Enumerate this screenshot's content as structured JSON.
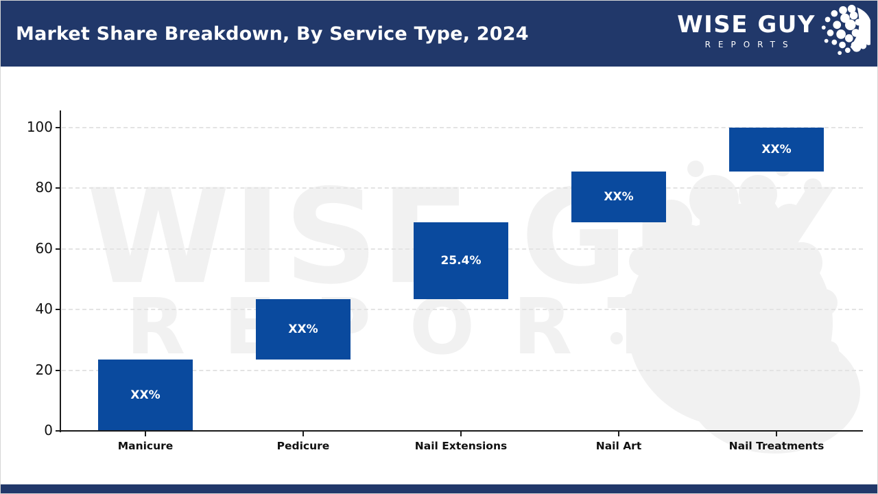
{
  "header": {
    "title": "Market Share Breakdown, By Service Type, 2024",
    "bg_color": "#21386a",
    "logo": {
      "line1": "WISE GUY",
      "line2": "REPORTS"
    }
  },
  "watermark": {
    "line1": "WISE GUY",
    "line2": "REPORTS"
  },
  "chart_data": {
    "type": "bar",
    "subtype": "waterfall",
    "title": "Market Share Breakdown, By Service Type, 2024",
    "categories": [
      "Manicure",
      "Pedicure",
      "Nail Extensions",
      "Nail Art",
      "Nail Treatments"
    ],
    "series": [
      {
        "name": "Market Share (%)",
        "starts": [
          0,
          23.4,
          43.4,
          68.8,
          85.5
        ],
        "values": [
          23.4,
          20.0,
          25.4,
          16.7,
          14.5
        ],
        "labels": [
          "XX%",
          "XX%",
          "25.4%",
          "XX%",
          "XX%"
        ]
      }
    ],
    "xlabel": "",
    "ylabel": "",
    "ylim": [
      0,
      100
    ],
    "yticks": [
      0,
      20,
      40,
      60,
      80,
      100
    ],
    "grid": "horizontal-dashed",
    "legend": "none",
    "bar_color": "#0a4a9e",
    "bar_label_color": "#ffffff",
    "axis_color": "#1a1a1a"
  }
}
